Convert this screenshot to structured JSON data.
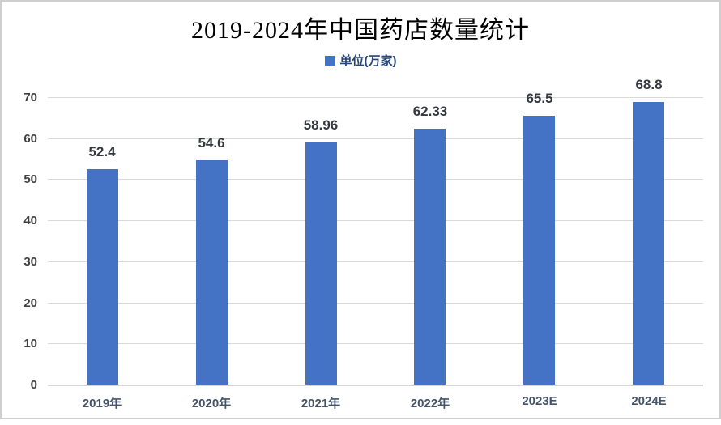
{
  "title": "2019-2024年中国药店数量统计",
  "legend": {
    "label": "单位(万家)",
    "swatch_color": "#4472C4"
  },
  "colors": {
    "bar": "#4472C4",
    "gridline": "#d9d9d9",
    "title_text": "#000000",
    "value_label_text": "#35393f",
    "x_label_text": "#44546A",
    "y_label_text": "#404040",
    "legend_text": "#264478"
  },
  "chart_data": {
    "type": "bar",
    "title": "2019-2024年中国药店数量统计",
    "legend_entries": [
      "单位(万家)"
    ],
    "legend_position": "top",
    "categories": [
      "2019年",
      "2020年",
      "2021年",
      "2022年",
      "2023E",
      "2024E"
    ],
    "series": [
      {
        "name": "单位(万家)",
        "values": [
          52.4,
          54.6,
          58.96,
          62.33,
          65.5,
          68.8
        ],
        "data_labels": [
          "52.4",
          "54.6",
          "58.96",
          "62.33",
          "65.5",
          "68.8"
        ]
      }
    ],
    "xlabel": "",
    "ylabel": "",
    "ylim": [
      0,
      70
    ],
    "yticks": [
      0,
      10,
      20,
      30,
      40,
      50,
      60,
      70
    ],
    "grid": true,
    "data_labels_shown": true
  }
}
